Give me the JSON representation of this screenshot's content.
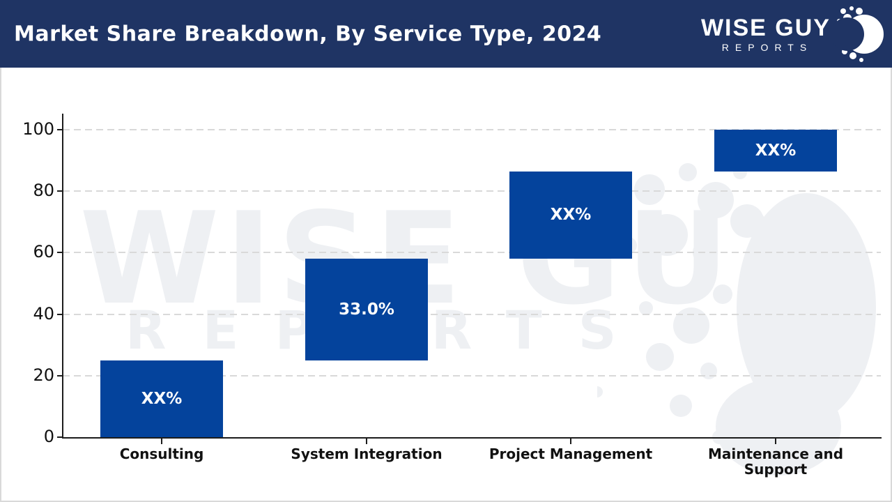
{
  "header": {
    "title": "Market Share Breakdown, By Service Type, 2024",
    "logo": {
      "brand_line1": "WISE GUY",
      "brand_line2": "REPORTS"
    }
  },
  "watermark": {
    "line1": "WISE GUY",
    "line2": "REPORTS"
  },
  "chart_data": {
    "type": "bar",
    "subtype": "floating-segment-waterfall",
    "title": "Market Share Breakdown, By Service Type, 2024",
    "categories": [
      "Consulting",
      "System Integration",
      "Project Management",
      "Maintenance and Support"
    ],
    "segments": [
      {
        "category": "Consulting",
        "start": 0,
        "end": 25,
        "value": 25,
        "label": "XX%"
      },
      {
        "category": "System Integration",
        "start": 25,
        "end": 58,
        "value": 33,
        "label": "33.0%"
      },
      {
        "category": "Project Management",
        "start": 58,
        "end": 86.5,
        "value": 28.5,
        "label": "XX%"
      },
      {
        "category": "Maintenance and Support",
        "start": 86.5,
        "end": 100,
        "value": 13.5,
        "label": "XX%"
      }
    ],
    "bar_labels": [
      "XX%",
      "33.0%",
      "XX%",
      "XX%"
    ],
    "xlabel": "",
    "ylabel": "",
    "ylim": [
      0,
      100
    ],
    "yticks": [
      0,
      20,
      40,
      60,
      80,
      100
    ],
    "grid": "horizontal dashed",
    "legend": "none"
  },
  "colors": {
    "header_bg": "#1f3464",
    "header_text": "#ffffff",
    "bar": "#04439c",
    "bar_label": "#ffffff",
    "gridline": "#d9d9d9",
    "axis": "#1c1c1c",
    "watermark": "#eef0f3",
    "panel_border": "#d9d9d9"
  }
}
